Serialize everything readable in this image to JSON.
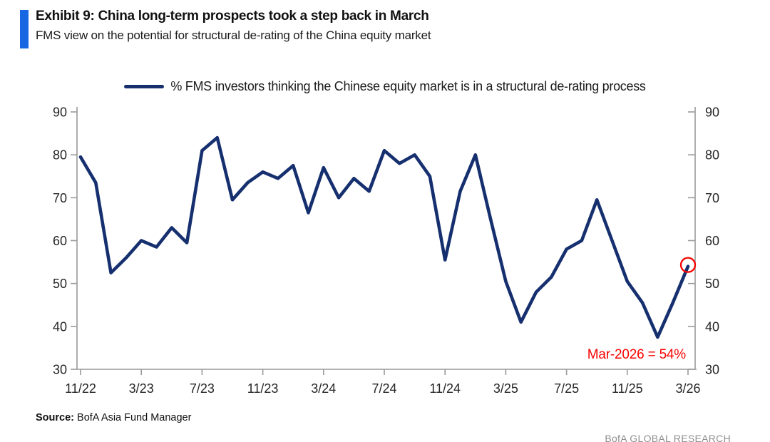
{
  "header": {
    "exhibit_title": "Exhibit 9: China long-term prospects took a step back in March",
    "subtitle": "FMS view on the potential for structural de-rating of the China equity market"
  },
  "legend": {
    "label": "% FMS investors thinking the Chinese equity market is in a structural de-rating process"
  },
  "annotation": {
    "text": "Mar-2026 = 54%"
  },
  "footer": {
    "source_label": "Source:",
    "source_text": " BofA Asia Fund Manager",
    "brand": "BofA GLOBAL RESEARCH"
  },
  "colors": {
    "line": "#16306f",
    "accent": "#1767e2",
    "annotation": "#f80400",
    "axis": "#9a9a9a",
    "label": "#262626",
    "brand": "#8f8f8f"
  },
  "chart_data": {
    "type": "line",
    "title": "% FMS investors thinking the Chinese equity market is in a structural de-rating process",
    "x": [
      "11/22",
      "12/22",
      "1/23",
      "2/23",
      "3/23",
      "4/23",
      "5/23",
      "6/23",
      "7/23",
      "8/23",
      "9/23",
      "10/23",
      "11/23",
      "12/23",
      "1/24",
      "2/24",
      "3/24",
      "4/24",
      "5/24",
      "6/24",
      "7/24",
      "8/24",
      "9/24",
      "10/24",
      "11/24",
      "12/24",
      "1/25",
      "2/25",
      "3/25",
      "4/25",
      "5/25",
      "6/25",
      "7/25",
      "8/25",
      "9/25",
      "10/25",
      "11/25",
      "12/25",
      "1/26",
      "2/26",
      "3/26"
    ],
    "values": [
      79.5,
      73.5,
      52.5,
      56,
      60,
      58.5,
      63,
      59.5,
      81,
      84,
      69.5,
      73.5,
      76,
      74.5,
      77.5,
      66.5,
      77,
      70,
      74.5,
      71.5,
      81,
      78,
      80,
      75,
      55.5,
      71.5,
      80,
      65,
      50.5,
      41,
      48,
      51.5,
      58,
      60,
      69.5,
      60,
      50.5,
      45.5,
      37.5,
      45.5,
      54
    ],
    "xticks": [
      "11/22",
      "3/23",
      "7/23",
      "11/23",
      "3/24",
      "7/24",
      "11/24",
      "3/25",
      "7/25",
      "11/25",
      "3/26"
    ],
    "yticks": [
      90,
      80,
      70,
      60,
      50,
      40,
      30
    ],
    "ylim": [
      30,
      90
    ],
    "grid": false,
    "legend_position": "top-center",
    "dual_y_axis_labels": true,
    "highlight": {
      "x": "3/26",
      "value": 54,
      "label": "Mar-2026 = 54%"
    }
  }
}
